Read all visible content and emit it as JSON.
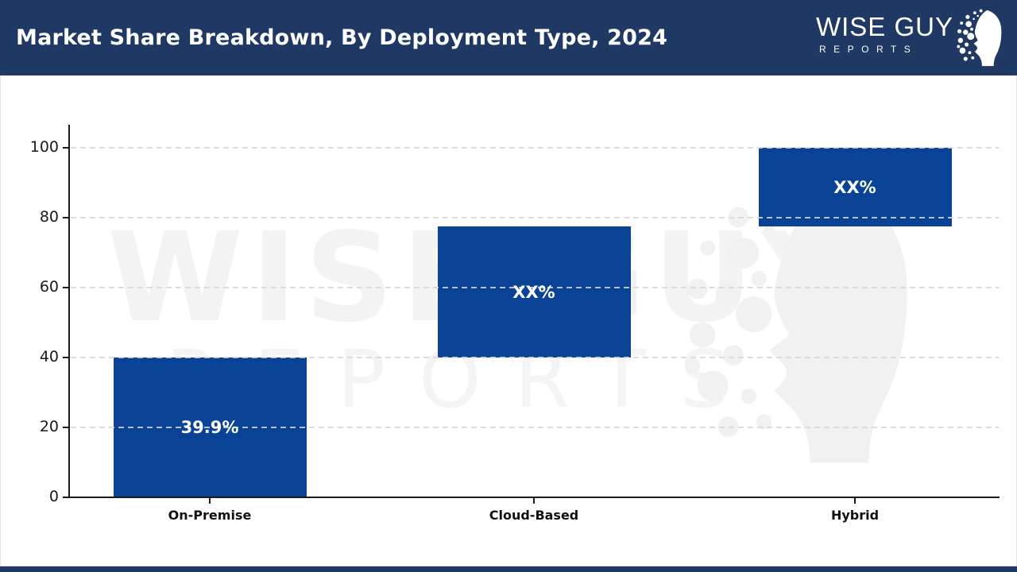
{
  "header": {
    "title": "Market Share Breakdown, By Deployment Type, 2024",
    "logo": {
      "line1": "WISE GUY",
      "line2": "REPORTS"
    }
  },
  "watermark": {
    "line1": "WISE GUY",
    "line2": "REPORTS"
  },
  "chart_data": {
    "type": "bar",
    "subtype": "waterfall-stacked-segments",
    "title": "Market Share Breakdown, By Deployment Type, 2024",
    "categories": [
      "On-Premise",
      "Cloud-Based",
      "Hybrid"
    ],
    "segments": [
      {
        "category": "On-Premise",
        "start": 0,
        "end": 39.9,
        "label": "39.9%"
      },
      {
        "category": "Cloud-Based",
        "start": 39.9,
        "end": 77.4,
        "label": "XX%"
      },
      {
        "category": "Hybrid",
        "start": 77.4,
        "end": 100,
        "label": "XX%"
      }
    ],
    "yticks": [
      0,
      20,
      40,
      60,
      80,
      100
    ],
    "ylim": [
      0,
      106
    ],
    "xlabel": "",
    "ylabel": "",
    "grid": "horizontal-dashed",
    "legend": "none",
    "bar_color": "#0a4296",
    "bar_label_color": "#ffffff",
    "axis_color": "#1a1a1a",
    "grid_color": "#d7d7d7"
  },
  "colors": {
    "header_bg": "#1f3864",
    "footer_bg": "#1f3864",
    "watermark_text": "#f3f3f3",
    "background": "#ffffff"
  }
}
